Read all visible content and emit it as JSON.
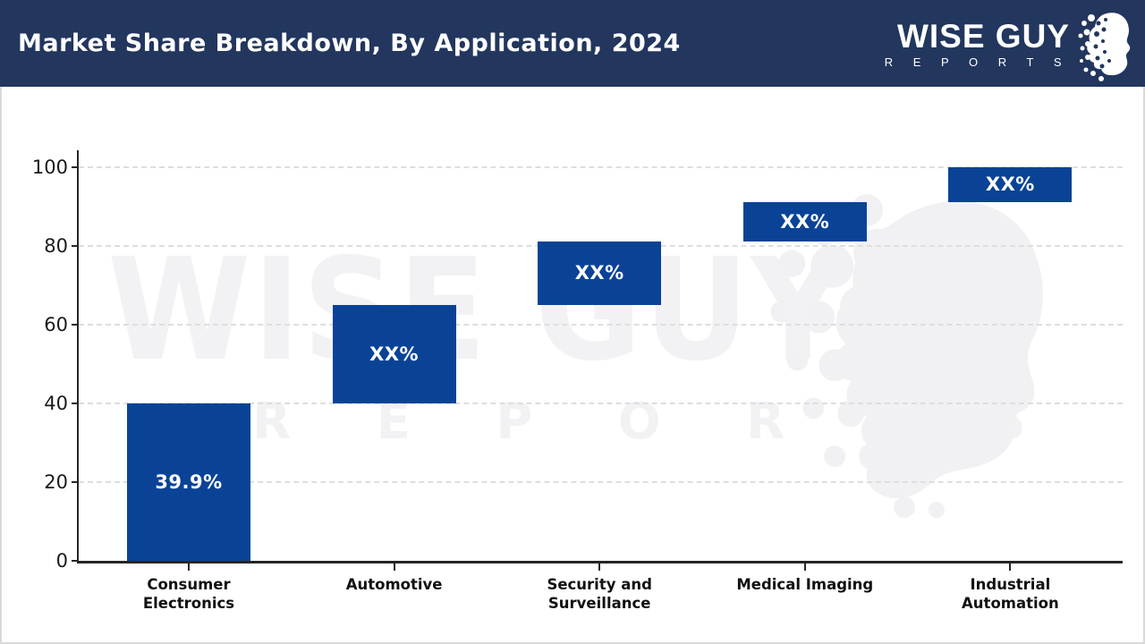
{
  "header": {
    "title": "Market Share Breakdown, By Application, 2024",
    "background": "#22365e",
    "logo": {
      "line1": "WISE GUY",
      "line2": "R E P O R T S"
    }
  },
  "watermark": {
    "line1": "WISE GUY",
    "line2": "R E P O R T S"
  },
  "chart_data": {
    "type": "bar",
    "subtype": "waterfall",
    "title": "Market Share Breakdown, By Application, 2024",
    "categories": [
      "Consumer Electronics",
      "Automotive",
      "Security and Surveillance",
      "Medical Imaging",
      "Industrial Automation"
    ],
    "category_label_lines": [
      [
        "Consumer",
        "Electronics"
      ],
      [
        "Automotive"
      ],
      [
        "Security and",
        "Surveillance"
      ],
      [
        "Medical Imaging"
      ],
      [
        "Industrial",
        "Automation"
      ]
    ],
    "bars": [
      {
        "category": "Consumer Electronics",
        "start": 0,
        "end": 39.9,
        "label": "39.9%"
      },
      {
        "category": "Automotive",
        "start": 40,
        "end": 65,
        "label": "XX%"
      },
      {
        "category": "Security and Surveillance",
        "start": 65,
        "end": 81,
        "label": "XX%"
      },
      {
        "category": "Medical Imaging",
        "start": 81,
        "end": 91,
        "label": "XX%"
      },
      {
        "category": "Industrial Automation",
        "start": 91,
        "end": 100,
        "label": "XX%"
      }
    ],
    "xlabel": "",
    "ylabel": "",
    "ylim": [
      0,
      104
    ],
    "yticks": [
      0,
      20,
      40,
      60,
      80,
      100
    ],
    "grid": "horizontal-dashed",
    "legend": "none",
    "colors": {
      "bar": "#0a4396",
      "bar_label": "#ffffff",
      "grid": "#dedede",
      "axis": "#262626",
      "tick_label": "#1a1a1a",
      "header": "#22365e"
    }
  }
}
